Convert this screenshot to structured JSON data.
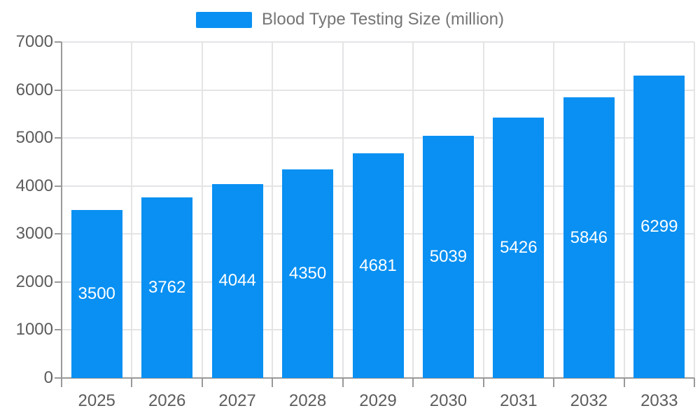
{
  "legend": {
    "label": "Blood Type Testing Size (million)"
  },
  "colors": {
    "background": "#ffffff",
    "bar": "#0990f2",
    "grid_line": "#e4e4e7",
    "axis_line": "#999999",
    "axis_text": "#5c5c5c",
    "legend_text": "#757575",
    "value_label_text": "#ffffff"
  },
  "chart_data": {
    "type": "bar",
    "title": "Blood Type Testing Size (million)",
    "categories": [
      "2025",
      "2026",
      "2027",
      "2028",
      "2029",
      "2030",
      "2031",
      "2032",
      "2033"
    ],
    "series": [
      {
        "name": "Blood Type Testing Size (million)",
        "color": "#0990f2",
        "values": [
          3500,
          3762,
          4044,
          4350,
          4681,
          5039,
          5426,
          5846,
          6299
        ]
      }
    ],
    "xlabel": "",
    "ylabel": "",
    "ylim": [
      0,
      7000
    ],
    "ytick_interval": 1000,
    "yticks": [
      "0",
      "1000",
      "2000",
      "3000",
      "4000",
      "5000",
      "6000",
      "7000"
    ],
    "grid": true,
    "legend_position": "top",
    "value_labels": "inside-center"
  }
}
